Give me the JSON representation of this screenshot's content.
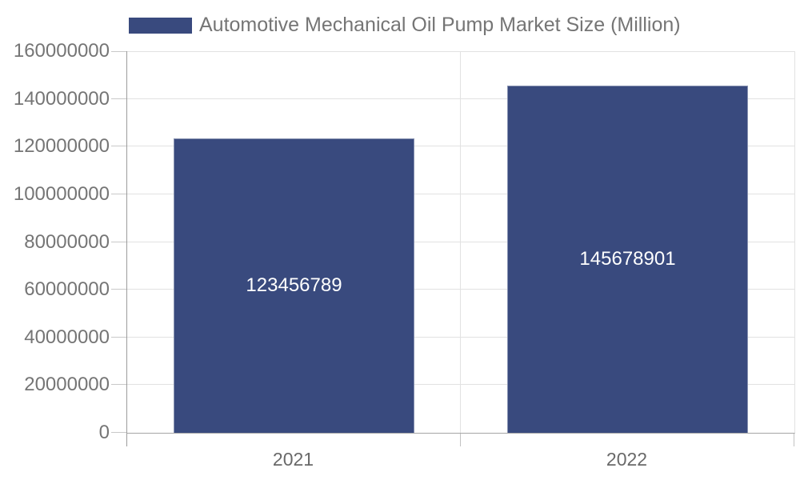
{
  "legend": {
    "label": "Automotive Mechanical Oil Pump Market Size (Million)",
    "swatch_color": "#394a7e"
  },
  "chart_data": {
    "type": "bar",
    "title": "",
    "xlabel": "",
    "ylabel": "",
    "categories": [
      "2021",
      "2022"
    ],
    "series": [
      {
        "name": "Automotive Mechanical Oil Pump Market Size (Million)",
        "values": [
          123456789,
          145678901
        ]
      }
    ],
    "bar_value_labels": [
      "123456789",
      "145678901"
    ],
    "ylim": [
      0,
      160000000
    ],
    "ytick_step": 20000000,
    "yticks": [
      0,
      20000000,
      40000000,
      60000000,
      80000000,
      100000000,
      120000000,
      140000000,
      160000000
    ],
    "grid": true,
    "legend_position": "top-left",
    "colors": {
      "bar": "#394a7e",
      "bar_label": "#ffffff",
      "gridline": "#e2e2e2",
      "axis_line": "#9c9c9c",
      "tick": "#c9c9c9",
      "tick_label": "#757575",
      "legend_text": "#757575"
    }
  }
}
